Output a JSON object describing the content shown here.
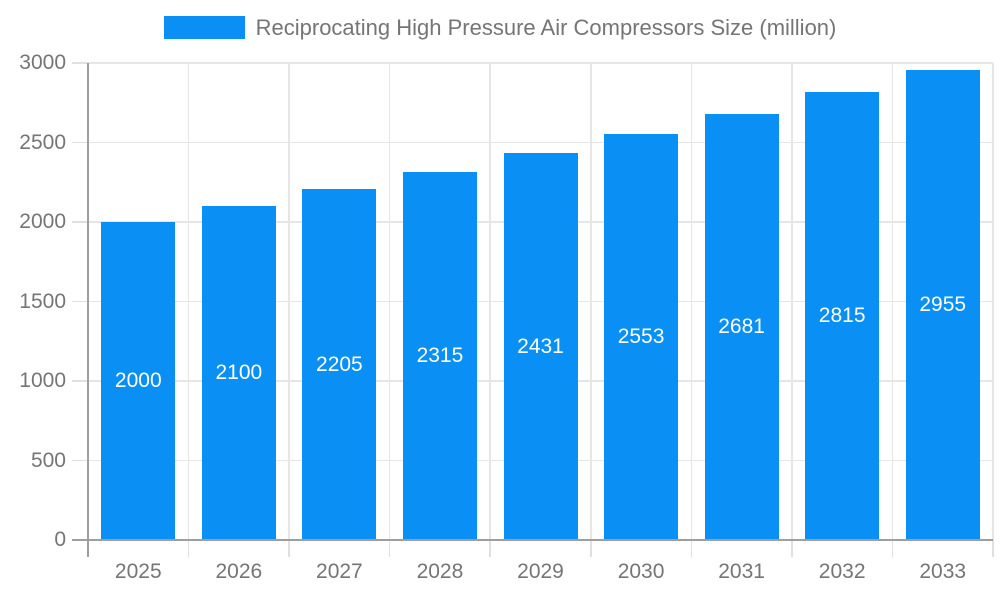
{
  "legend": {
    "items": [
      {
        "label": "Reciprocating High Pressure Air Compressors Size (million)",
        "color": "#0A90F5"
      }
    ]
  },
  "chart_data": {
    "type": "bar",
    "title": "Reciprocating High Pressure Air Compressors Size (million)",
    "categories": [
      "2025",
      "2026",
      "2027",
      "2028",
      "2029",
      "2030",
      "2031",
      "2032",
      "2033"
    ],
    "series": [
      {
        "name": "Reciprocating High Pressure Air Compressors Size (million)",
        "values": [
          2000,
          2100,
          2205,
          2315,
          2431,
          2553,
          2681,
          2815,
          2955
        ],
        "color": "#0A90F5"
      }
    ],
    "value_labels_shown": true,
    "xlabel": "",
    "ylabel": "",
    "ylim": [
      0,
      3000
    ],
    "yticks": [
      0,
      500,
      1000,
      1500,
      2000,
      2500,
      3000
    ],
    "grid": true,
    "legend_position": "top"
  },
  "style": {
    "bar_color": "#0A90F5",
    "bar_value_label_color": "#ffffff",
    "axis_line_color": "#9e9e9e",
    "grid_color": "#e6e6e6",
    "tick_mark_color": "#e0e0e0",
    "tick_label_color": "#757575",
    "legend_text_color": "#757575",
    "background": "#ffffff"
  }
}
